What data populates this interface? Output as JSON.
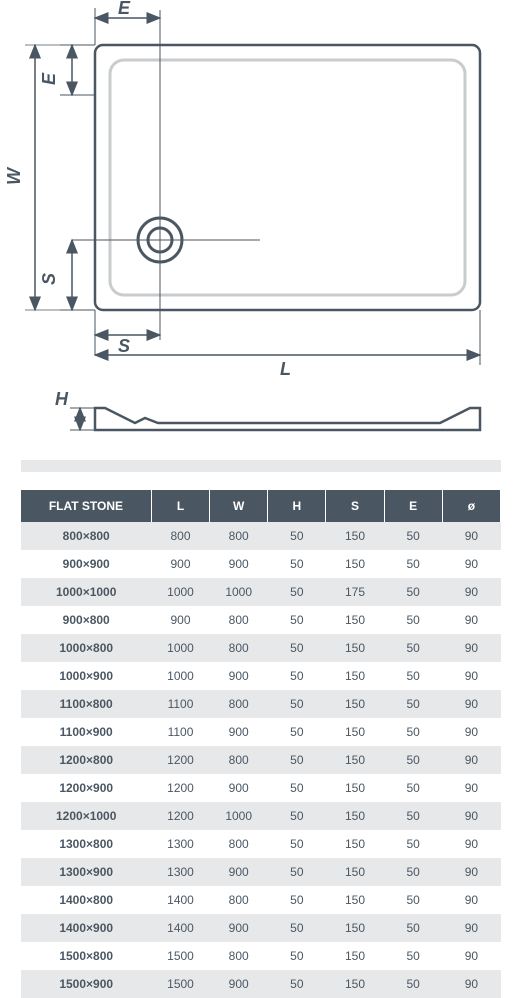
{
  "diagram": {
    "labels": {
      "L": "L",
      "W": "W",
      "H": "H",
      "S": "S",
      "E": "E"
    },
    "stroke": "#4a5762",
    "light": "#c9ccce"
  },
  "table": {
    "header": [
      "FLAT STONE",
      "L",
      "W",
      "H",
      "S",
      "E",
      "ø"
    ],
    "rows": [
      [
        "800×800",
        "800",
        "800",
        "50",
        "150",
        "50",
        "90"
      ],
      [
        "900×900",
        "900",
        "900",
        "50",
        "150",
        "50",
        "90"
      ],
      [
        "1000×1000",
        "1000",
        "1000",
        "50",
        "175",
        "50",
        "90"
      ],
      [
        "900×800",
        "900",
        "800",
        "50",
        "150",
        "50",
        "90"
      ],
      [
        "1000×800",
        "1000",
        "800",
        "50",
        "150",
        "50",
        "90"
      ],
      [
        "1000×900",
        "1000",
        "900",
        "50",
        "150",
        "50",
        "90"
      ],
      [
        "1100×800",
        "1100",
        "800",
        "50",
        "150",
        "50",
        "90"
      ],
      [
        "1100×900",
        "1100",
        "900",
        "50",
        "150",
        "50",
        "90"
      ],
      [
        "1200×800",
        "1200",
        "800",
        "50",
        "150",
        "50",
        "90"
      ],
      [
        "1200×900",
        "1200",
        "900",
        "50",
        "150",
        "50",
        "90"
      ],
      [
        "1200×1000",
        "1200",
        "1000",
        "50",
        "150",
        "50",
        "90"
      ],
      [
        "1300×800",
        "1300",
        "800",
        "50",
        "150",
        "50",
        "90"
      ],
      [
        "1300×900",
        "1300",
        "900",
        "50",
        "150",
        "50",
        "90"
      ],
      [
        "1400×800",
        "1400",
        "800",
        "50",
        "150",
        "50",
        "90"
      ],
      [
        "1400×900",
        "1400",
        "900",
        "50",
        "150",
        "50",
        "90"
      ],
      [
        "1500×800",
        "1500",
        "800",
        "50",
        "150",
        "50",
        "90"
      ],
      [
        "1500×900",
        "1500",
        "900",
        "50",
        "150",
        "50",
        "90"
      ]
    ]
  }
}
